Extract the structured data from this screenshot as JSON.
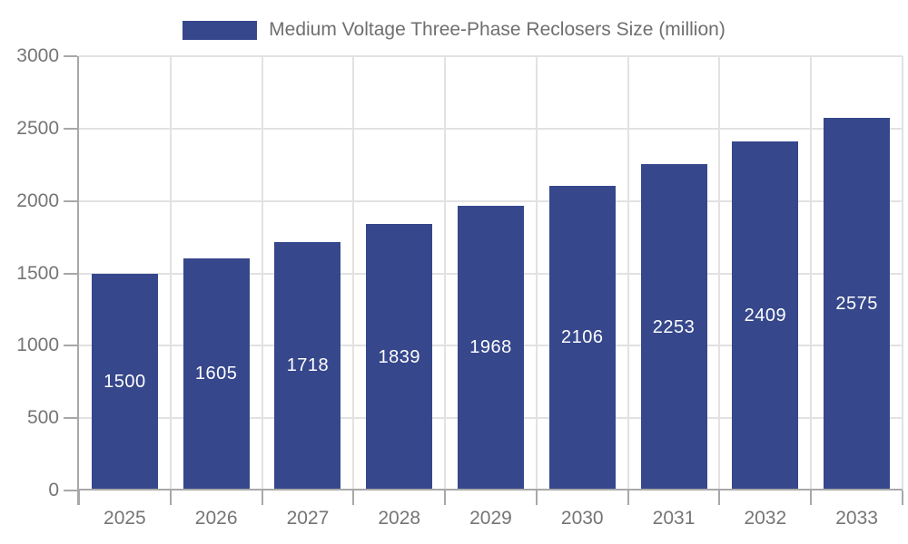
{
  "chart_data": {
    "type": "bar",
    "series_name": "Medium Voltage Three-Phase Reclosers Size (million)",
    "categories": [
      "2025",
      "2026",
      "2027",
      "2028",
      "2029",
      "2030",
      "2031",
      "2032",
      "2033"
    ],
    "values": [
      1500,
      1605,
      1718,
      1839,
      1968,
      2106,
      2253,
      2409,
      2575
    ],
    "xlabel": "",
    "ylabel": "",
    "ylim": [
      0,
      3000
    ],
    "yticks": [
      0,
      500,
      1000,
      1500,
      2000,
      2500,
      3000
    ],
    "grid": true,
    "legend_position": "top-center",
    "value_labels": "inside-center",
    "colors": {
      "bar": "#36478C",
      "bar_label": "#ffffff",
      "axis": "#a8a8a8",
      "grid": "#e2e2e2",
      "tick_label": "#757575",
      "legend_text": "#6f6f6f",
      "background": "#ffffff"
    }
  }
}
